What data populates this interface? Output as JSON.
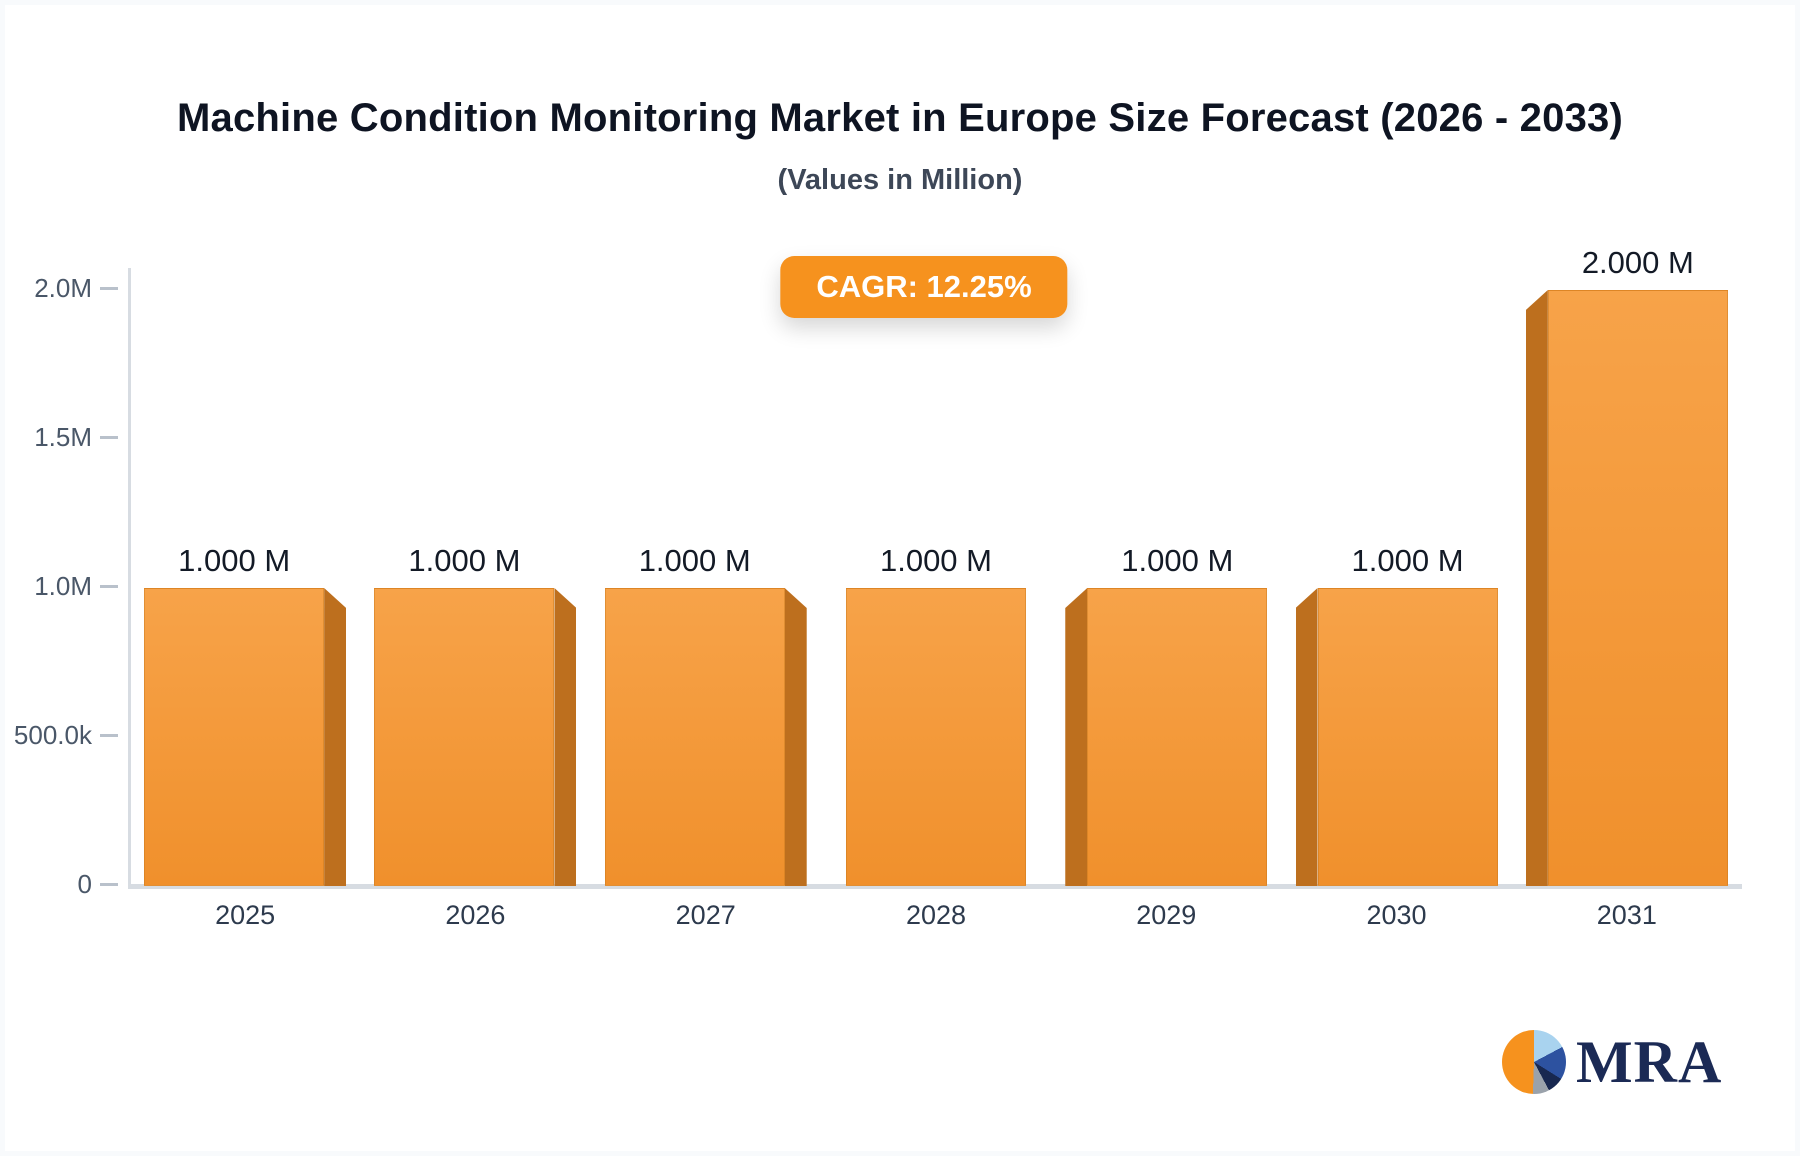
{
  "header": {
    "title": "Machine Condition Monitoring Market in Europe Size Forecast (2026 - 2033)",
    "subtitle": "(Values in Million)"
  },
  "badge": {
    "label": "CAGR: 12.25%"
  },
  "logo": {
    "text": "MRA",
    "icon": "pie-chart-icon"
  },
  "colors": {
    "accent": "#f6921e",
    "bar_face_top": "#f7a349",
    "bar_face_bottom": "#f0902c",
    "bar_side": "#bd6f1e",
    "axis_line": "#d7dce2",
    "tick": "#b9c1cb",
    "title_color": "#0e1422",
    "subtitle_color": "#3d4757",
    "axis_label": "#4a5768",
    "year_label": "#2d3a4d",
    "value_label": "#131a26",
    "logo_navy": "#1b2a55"
  },
  "chart_data": {
    "type": "bar",
    "title": "Machine Condition Monitoring Market in Europe Size Forecast (2026 - 2033)",
    "subtitle": "(Values in Million)",
    "cagr": "CAGR: 12.25%",
    "categories": [
      "2025",
      "2026",
      "2027",
      "2028",
      "2029",
      "2030",
      "2031"
    ],
    "values": [
      1000000,
      1000000,
      1000000,
      1000000,
      1000000,
      1000000,
      2000000
    ],
    "value_labels": [
      "1.000 M",
      "1.000 M",
      "1.000 M",
      "1.000 M",
      "1.000 M",
      "1.000 M",
      "2.000 M"
    ],
    "yticks": [
      {
        "label": "0",
        "value": 0
      },
      {
        "label": "500.0k",
        "value": 500000
      },
      {
        "label": "1.0M",
        "value": 1000000
      },
      {
        "label": "1.5M",
        "value": 1500000
      },
      {
        "label": "2.0M",
        "value": 2000000
      }
    ],
    "ylim": [
      0,
      2000000
    ],
    "xlabel": "",
    "ylabel": "",
    "grid": false,
    "legend": false,
    "bar_style": "3d-perspective, side shading faces away from center bar (2028)"
  }
}
